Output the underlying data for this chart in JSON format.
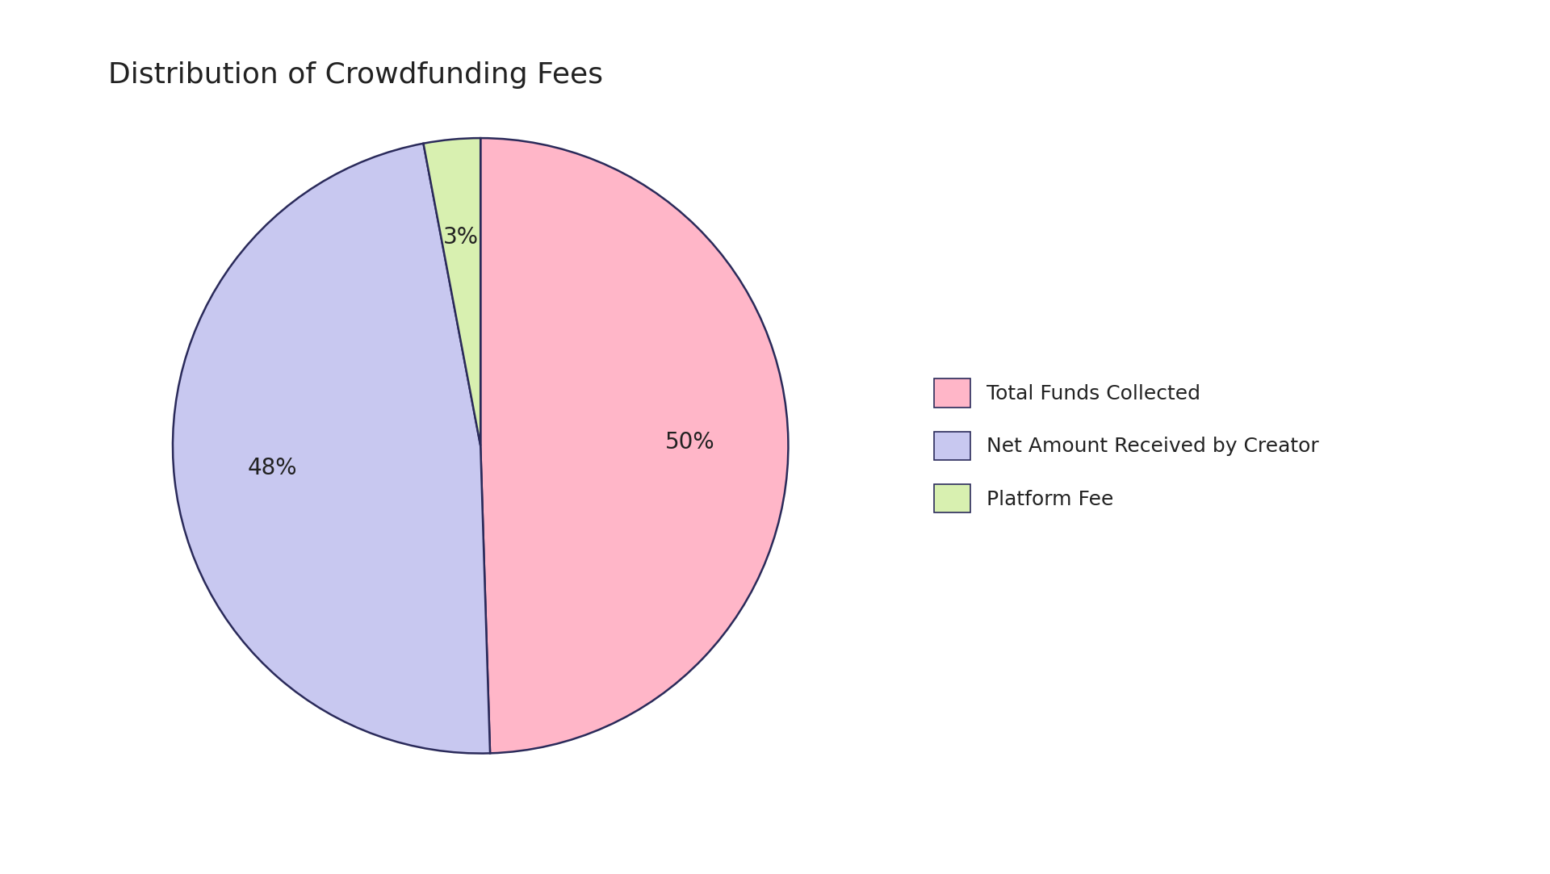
{
  "title": "Distribution of Crowdfunding Fees",
  "title_fontsize": 26,
  "title_fontfamily": "sans-serif",
  "slices": [
    50,
    48,
    3
  ],
  "labels": [
    "Total Funds Collected",
    "Net Amount Received by Creator",
    "Platform Fee"
  ],
  "colors": [
    "#FFB6C8",
    "#C8C8F0",
    "#D8F0B0"
  ],
  "edge_color": "#2A2A5A",
  "edge_linewidth": 1.8,
  "autopct_labels": [
    "50%",
    "48%",
    "3%"
  ],
  "pct_fontsize": 20,
  "startangle": 90,
  "legend_fontsize": 18,
  "background_color": "#FFFFFF",
  "text_color": "#222222"
}
